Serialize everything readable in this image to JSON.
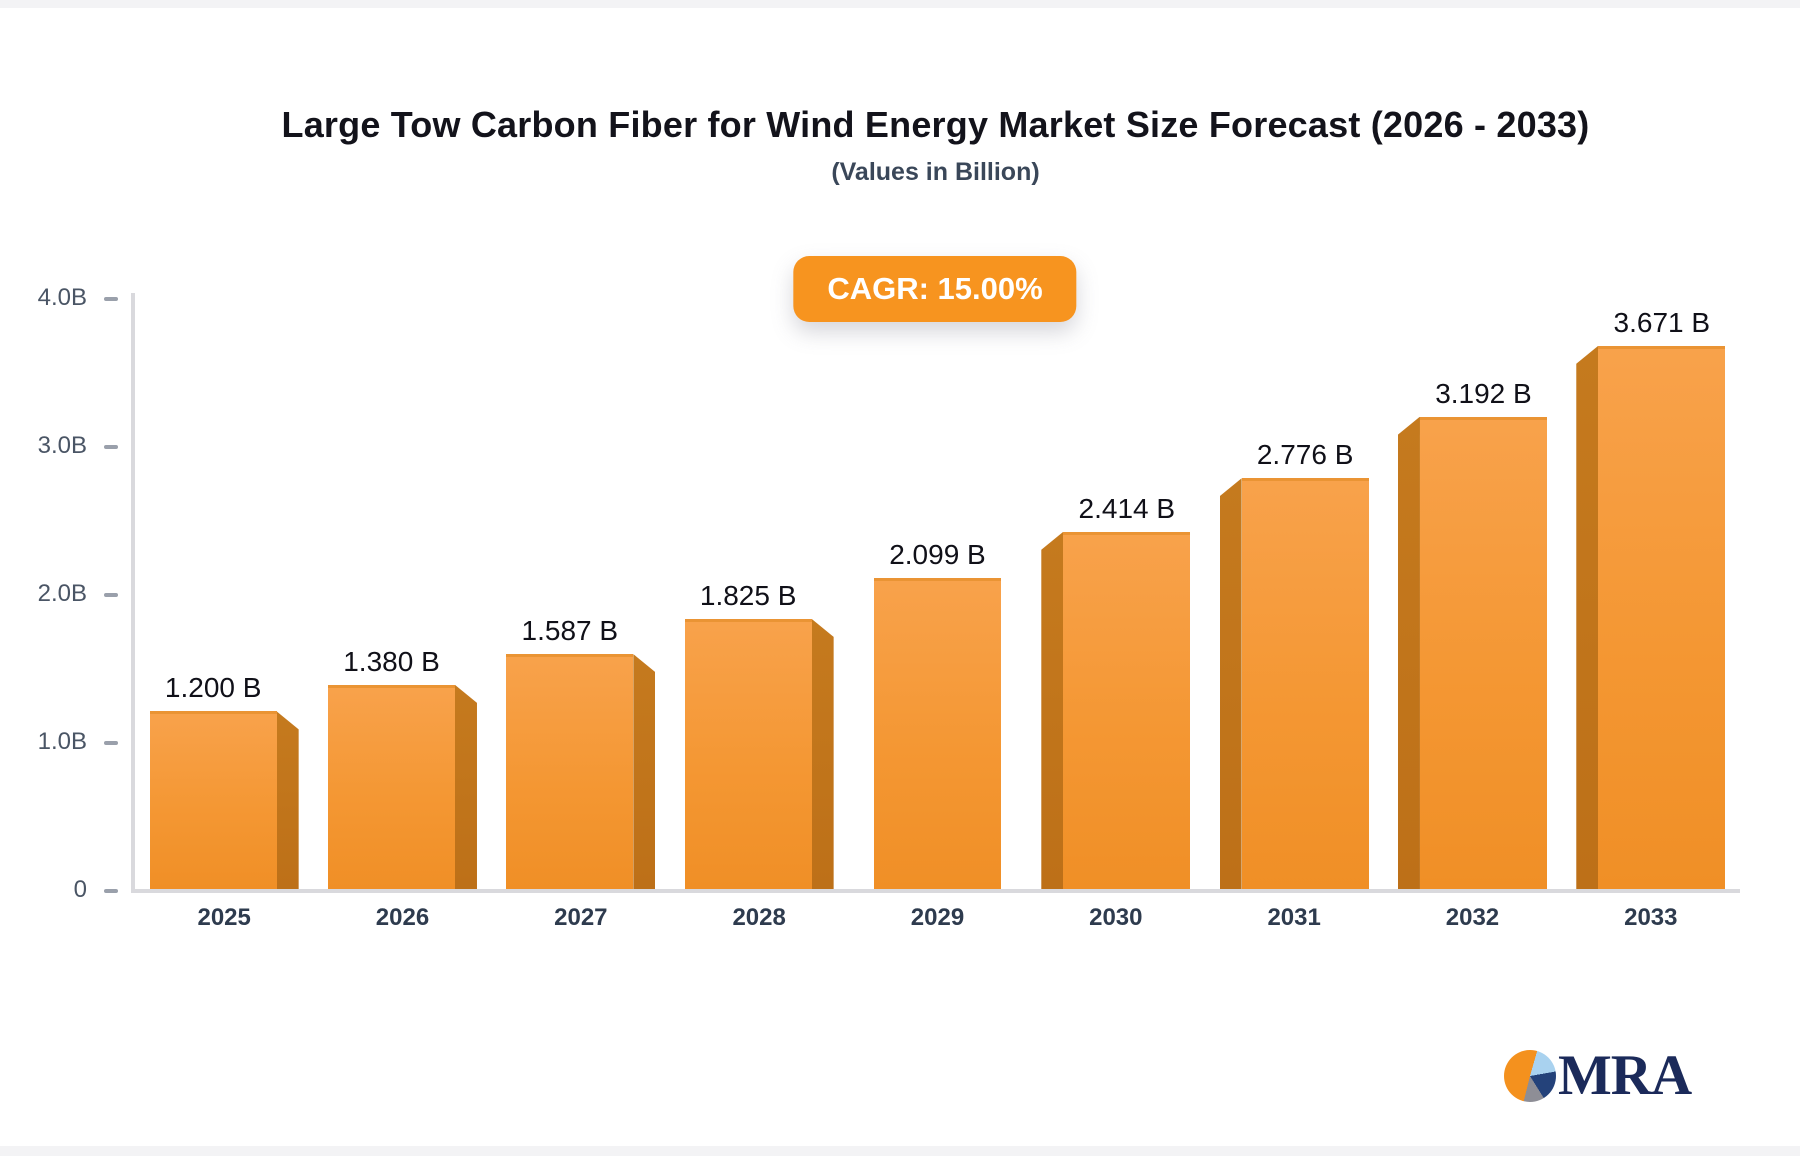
{
  "header": {
    "title": "Large Tow Carbon Fiber for Wind Energy Market Size Forecast (2026 - 2033)",
    "subtitle": "(Values in Billion)"
  },
  "badge": {
    "label": "CAGR: 15.00%",
    "background": "#f7941f",
    "text_color": "#ffffff"
  },
  "chart_data": {
    "type": "bar",
    "title": "Large Tow Carbon Fiber for Wind Energy Market Size Forecast (2026 - 2033)",
    "subtitle": "(Values in Billion)",
    "categories": [
      "2025",
      "2026",
      "2027",
      "2028",
      "2029",
      "2030",
      "2031",
      "2032",
      "2033"
    ],
    "values": [
      1.2,
      1.38,
      1.587,
      1.825,
      2.099,
      2.414,
      2.776,
      3.192,
      3.671
    ],
    "value_labels": [
      "1.200 B",
      "1.380 B",
      "1.587 B",
      "1.825 B",
      "2.099 B",
      "2.414 B",
      "2.776 B",
      "3.192 B",
      "3.671 B"
    ],
    "xlabel": "",
    "ylabel": "",
    "ylim": [
      0,
      4.0
    ],
    "y_ticks": [
      {
        "label": "0",
        "value": 0.0
      },
      {
        "label": "1.0B",
        "value": 1.0
      },
      {
        "label": "2.0B",
        "value": 2.0
      },
      {
        "label": "3.0B",
        "value": 3.0
      },
      {
        "label": "4.0B",
        "value": 4.0
      }
    ],
    "grid": false,
    "legend": false,
    "bar_color_top": "#f8a24b",
    "bar_color_bottom": "#f08f26",
    "bar_side_color": "#c0731a",
    "axis_color": "#d9d9dd",
    "value_label_color": "#101018",
    "year_label_color": "#2e3b4e"
  },
  "logo": {
    "text": "MRA",
    "text_color": "#1b2a5a",
    "pie_colors": [
      "#f4911e",
      "#a9d2ef",
      "#24427a",
      "#8e8e96"
    ]
  }
}
